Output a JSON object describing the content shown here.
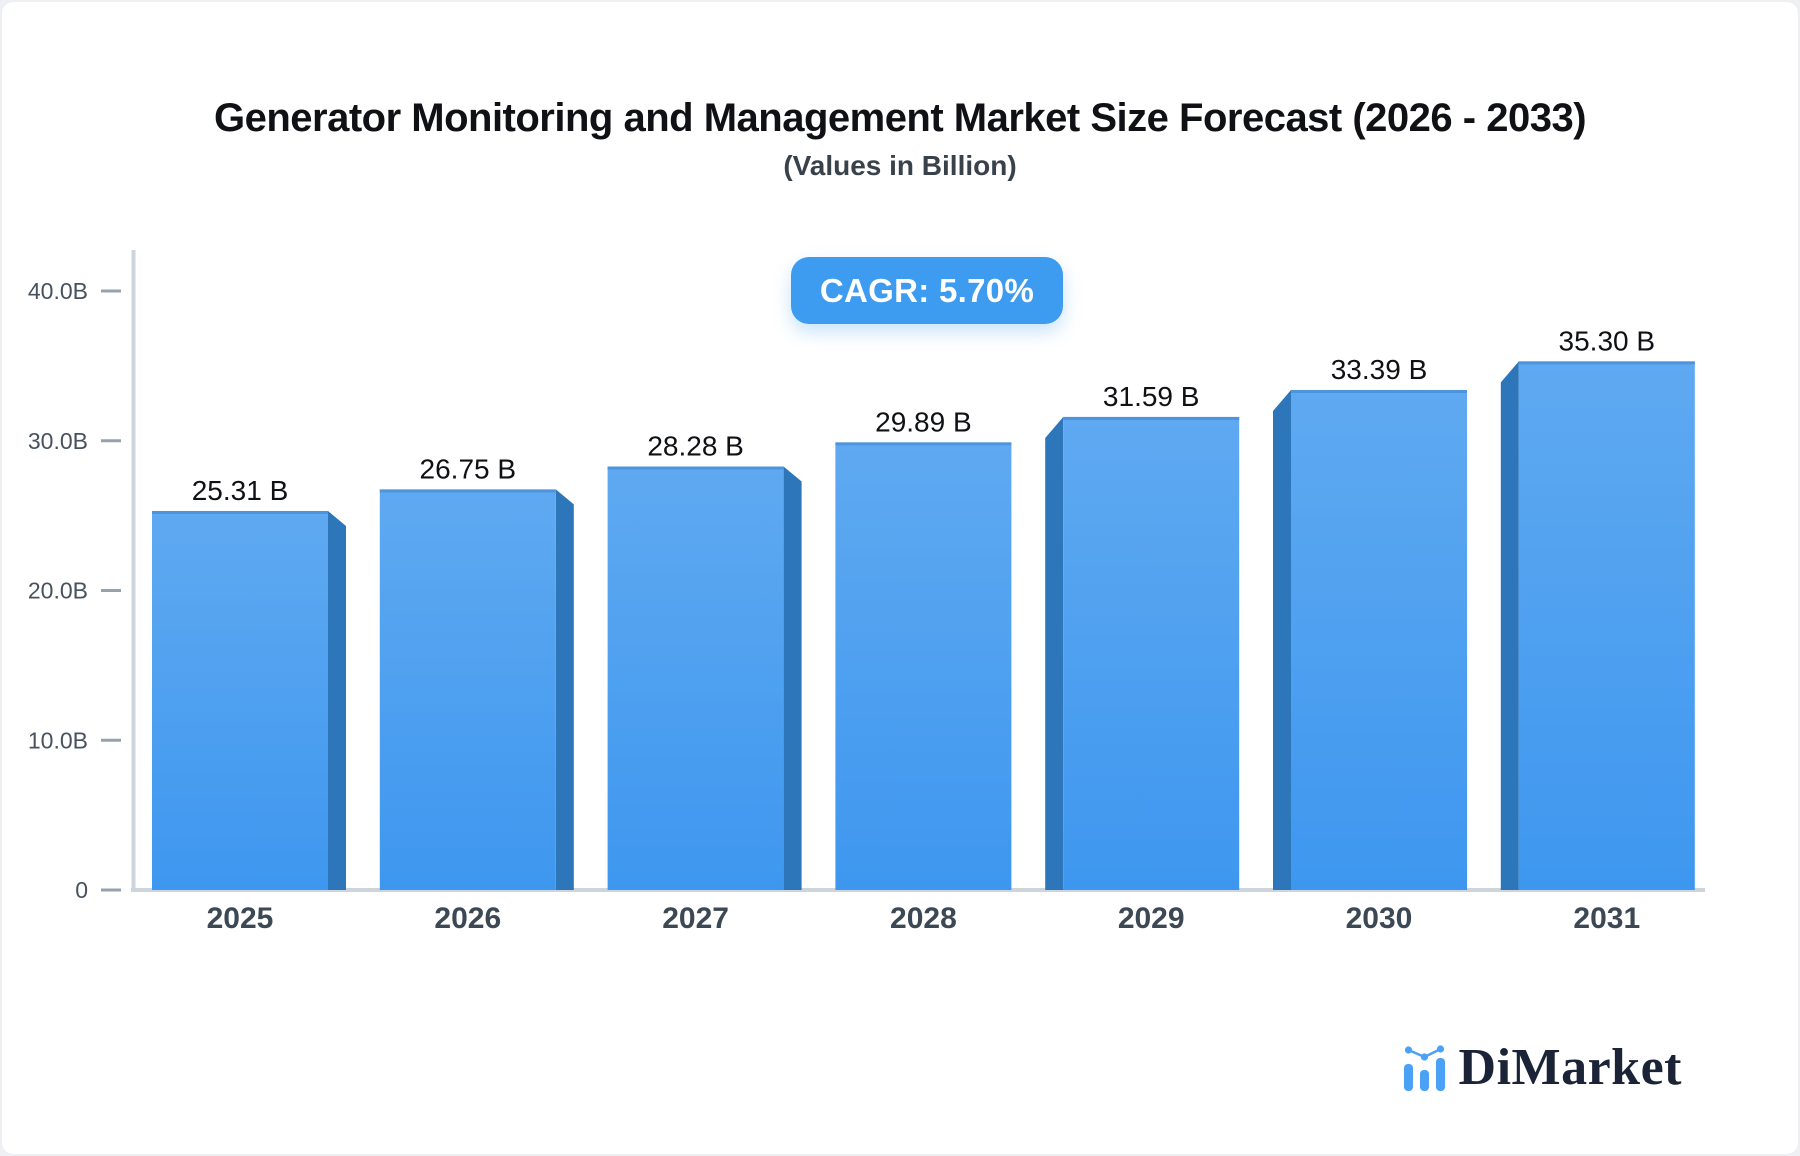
{
  "page": {
    "title": "Generator Monitoring and Management Market Size Forecast (2026 - 2033)",
    "subtitle": "(Values in Billion)",
    "cagr_label": "CAGR: 5.70%"
  },
  "brand": {
    "name": "DiMarket",
    "icon": "mini-bar-line-chart-icon"
  },
  "colors": {
    "badge_bg": "#3D9BF0",
    "bar_face_top": "#5FA9F1",
    "bar_face_bottom": "#3E97EF",
    "bar_top_edge": "#4D93DD",
    "bar_side": "#2C76B9",
    "axis_line": "#CDD4DC",
    "tick_dash": "#97A1AD",
    "tick_label": "#47525E",
    "category_label": "#3C4854",
    "value_label": "#0F1115",
    "brand_text": "#1B2336",
    "brand_icon": "#4AA1F6"
  },
  "chart_data": {
    "type": "bar",
    "title": "Generator Monitoring and Management Market Size Forecast (2026 - 2033)",
    "subtitle": "(Values in Billion)",
    "cagr": "5.70%",
    "categories": [
      "2025",
      "2026",
      "2027",
      "2028",
      "2029",
      "2030",
      "2031"
    ],
    "values": [
      25.31,
      26.75,
      28.28,
      29.89,
      31.59,
      33.39,
      35.3
    ],
    "value_labels": [
      "25.31 B",
      "26.75 B",
      "28.28 B",
      "29.89 B",
      "31.59 B",
      "33.39 B",
      "35.30 B"
    ],
    "xlabel": "",
    "ylabel": "",
    "ylim": [
      0,
      40
    ],
    "ytick_values": [
      0,
      10,
      20,
      30,
      40
    ],
    "ytick_labels": [
      "0",
      "10.0B",
      "20.0B",
      "30.0B",
      "40.0B"
    ],
    "grid": false,
    "legend": false,
    "bar_style": "3d-extruded, side faces point away from center column"
  }
}
